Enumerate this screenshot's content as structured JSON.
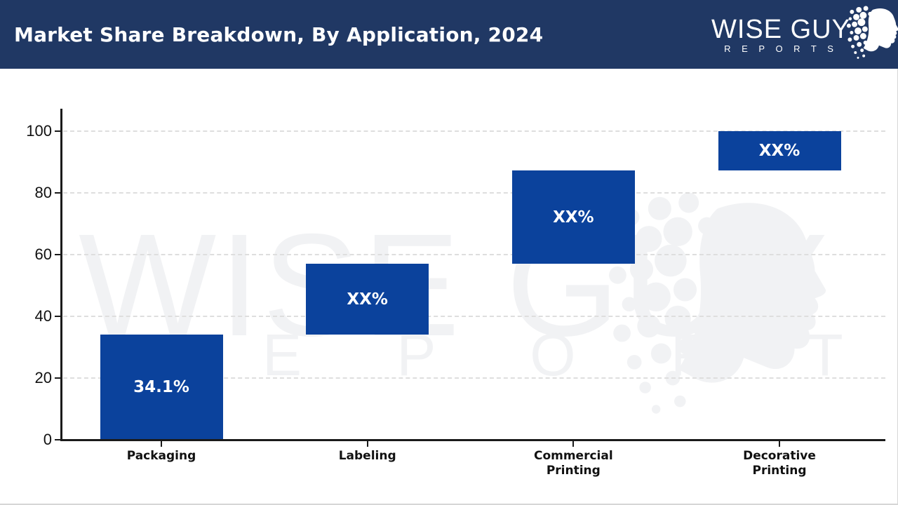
{
  "header": {
    "title": "Market Share Breakdown, By Application, 2024",
    "bg_color": "#203864",
    "logo": {
      "line1": "WISE GUY",
      "line2": "R E P O R T S",
      "icon": "dotted-face-profile"
    }
  },
  "watermark": {
    "line1": "WISE GUY",
    "line2": "R E P O R T S",
    "color": "#f1f2f4"
  },
  "chart_data": {
    "type": "bar",
    "subtype": "waterfall",
    "title": "Market Share Breakdown, By Application, 2024",
    "categories": [
      "Packaging",
      "Labeling",
      "Commercial\nPrinting",
      "Decorative\nPrinting"
    ],
    "segments": [
      {
        "category": "Packaging",
        "start": 0,
        "end": 34.1,
        "label": "34.1%"
      },
      {
        "category": "Labeling",
        "start": 34.1,
        "end": 57,
        "label": "XX%"
      },
      {
        "category": "Commercial Printing",
        "start": 57,
        "end": 87.3,
        "label": "XX%"
      },
      {
        "category": "Decorative Printing",
        "start": 87.3,
        "end": 100,
        "label": "XX%"
      }
    ],
    "yticks": [
      0,
      20,
      40,
      60,
      80,
      100
    ],
    "ylim": [
      0,
      107
    ],
    "xlabel": "",
    "ylabel": "",
    "grid": "horizontal-dashed",
    "legend": "none",
    "bar_color": "#0b429c",
    "bar_label_color": "#ffffff",
    "axis_color": "#1a1a1a"
  }
}
